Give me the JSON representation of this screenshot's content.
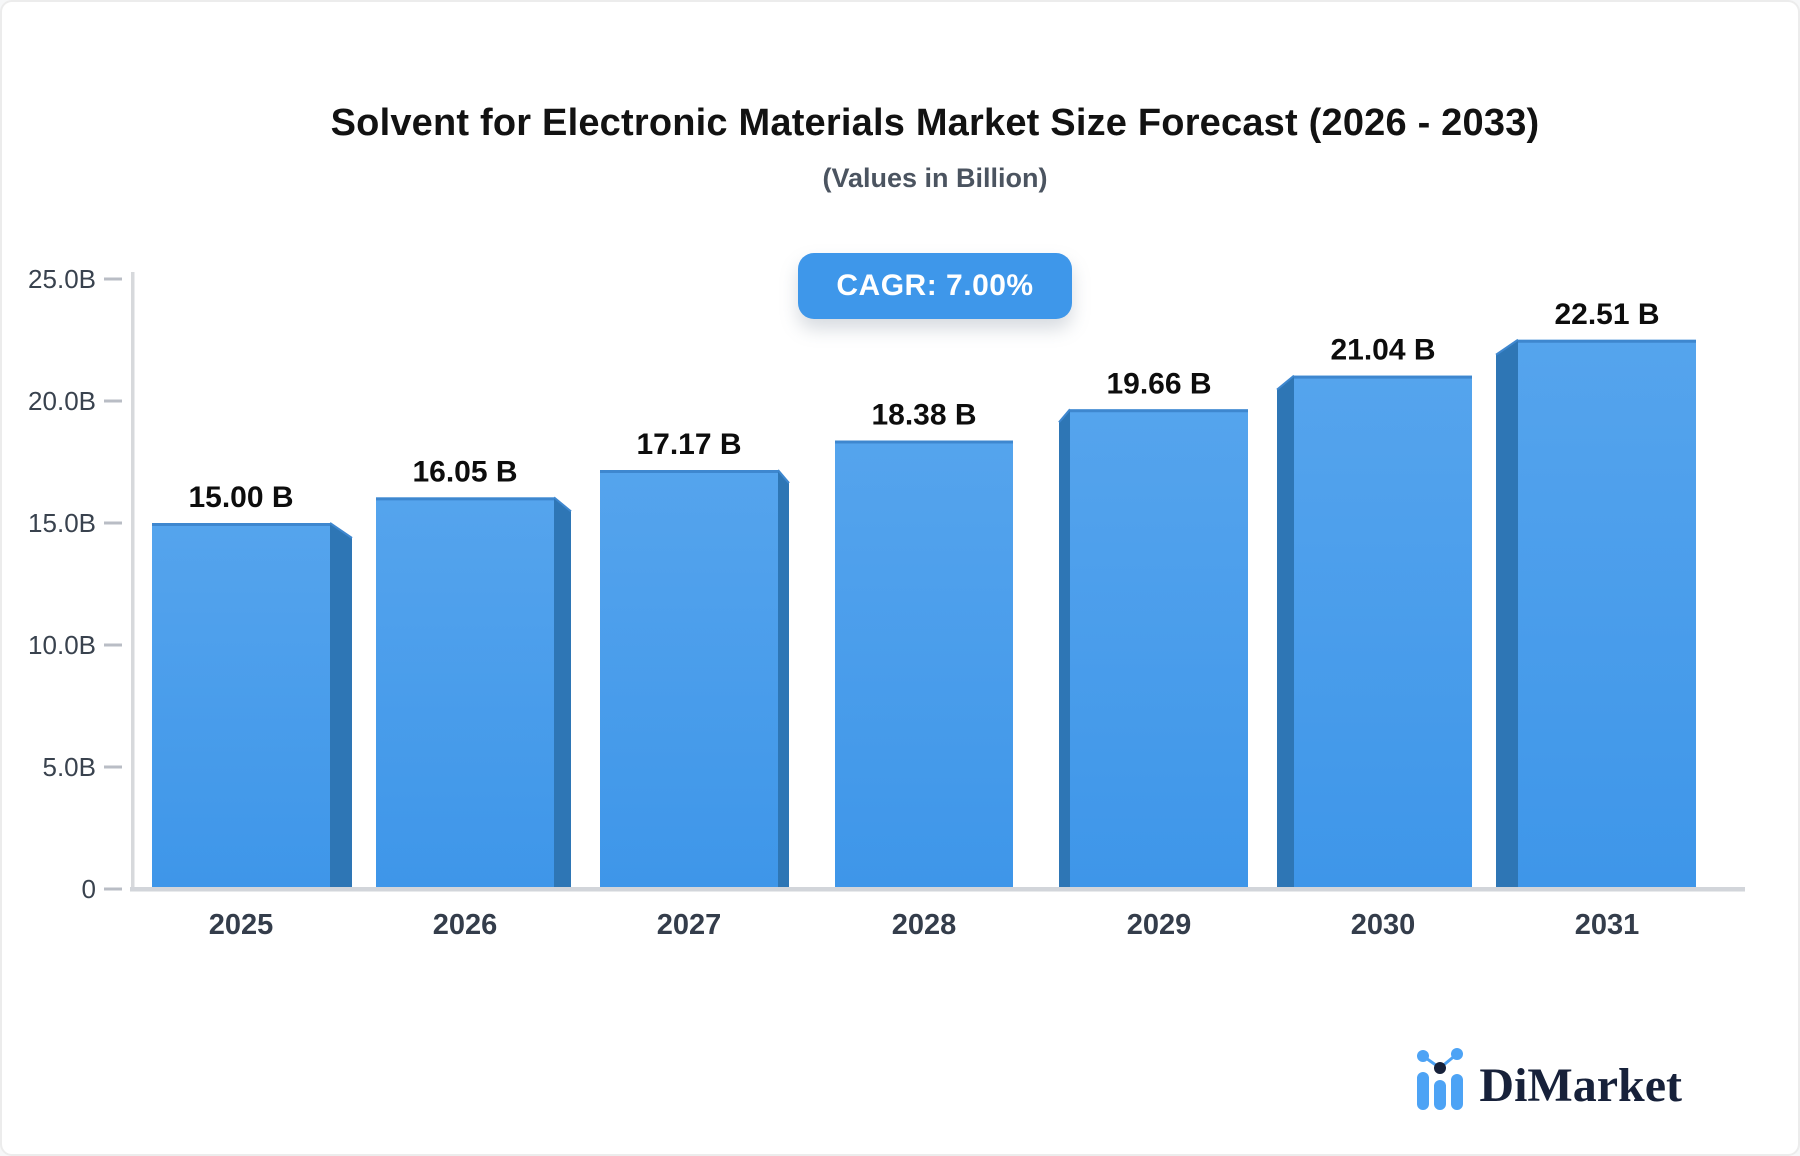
{
  "header": {
    "title": "Solvent for Electronic Materials Market Size Forecast (2026 - 2033)",
    "subtitle": "(Values in Billion)",
    "cagr_label": "CAGR: 7.00%"
  },
  "chart_data": {
    "type": "bar",
    "title": "Solvent for Electronic Materials Market Size Forecast (2026 - 2033)",
    "subtitle": "(Values in Billion)",
    "categories": [
      "2025",
      "2026",
      "2027",
      "2028",
      "2029",
      "2030",
      "2031"
    ],
    "values": [
      15.0,
      16.05,
      17.17,
      18.38,
      19.66,
      21.04,
      22.51
    ],
    "value_labels": [
      "15.00 B",
      "16.05 B",
      "17.17 B",
      "18.38 B",
      "19.66 B",
      "21.04 B",
      "22.51 B"
    ],
    "y_tick_values": [
      0,
      5,
      10,
      15,
      20,
      25
    ],
    "y_tick_labels": [
      "0",
      "5.0B",
      "10.0B",
      "15.0B",
      "20.0B",
      "25.0B"
    ],
    "ylim": [
      0,
      25
    ],
    "xlabel": "",
    "ylabel": "",
    "grid": false,
    "legend": "none",
    "style": "3d-perspective-bars",
    "annotations": [
      "CAGR: 7.00%"
    ]
  },
  "branding": {
    "logo_text": "DiMarket",
    "logo_icon": "bar-line-chart-icon"
  },
  "colors": {
    "bar_face_top": "#55a4ed",
    "bar_face_bottom": "#3e96e9",
    "bar_side": "#2e76b5",
    "bar_top_edge": "#3e87cf",
    "badge_bg": "#3e97ea",
    "badge_text": "#ffffff",
    "axis_line": "#d7d9dc",
    "baseline": "#d2d5da",
    "tick": "#b9bdc5",
    "y_label": "#39424e",
    "x_label": "#343d4b",
    "value_label": "#0d0d0d",
    "title": "#121212",
    "subtitle": "#4b5460",
    "logo_navy": "#17213a",
    "logo_blue": "#4da3f5"
  }
}
